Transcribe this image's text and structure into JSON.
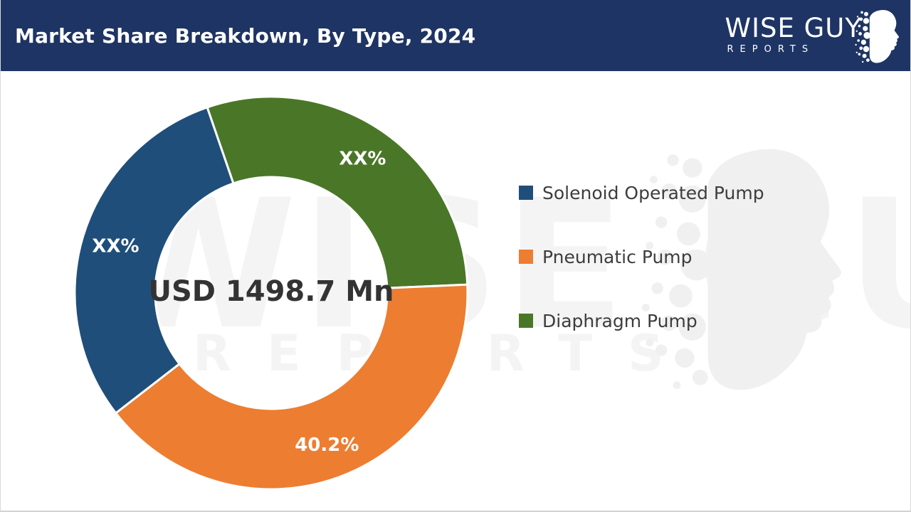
{
  "header": {
    "title": "Market Share Breakdown, By Type, 2024",
    "background_color": "#1e3464",
    "logo": {
      "line1": "WISE GUY",
      "line2": "REPORTS"
    }
  },
  "chart_data": {
    "type": "pie",
    "variant": "donut",
    "title": "Market Share Breakdown, By Type, 2024",
    "center_label": "USD 1498.7 Mn",
    "start_angle_deg": 109,
    "direction": "clockwise",
    "legend_position": "right",
    "segments": [
      {
        "name": "Diaphragm Pump",
        "value_pct": 29.6,
        "data_label": "XX%",
        "color": "#4a7628"
      },
      {
        "name": "Pneumatic Pump",
        "value_pct": 40.2,
        "data_label": "40.2%",
        "color": "#ed7d31"
      },
      {
        "name": "Solenoid Operated Pump",
        "value_pct": 30.2,
        "data_label": "XX%",
        "color": "#1f4e7a"
      }
    ]
  },
  "legend": {
    "items": [
      {
        "label": "Solenoid Operated Pump",
        "color": "#1f4e7a"
      },
      {
        "label": "Pneumatic Pump",
        "color": "#ed7d31"
      },
      {
        "label": "Diaphragm Pump",
        "color": "#4a7628"
      }
    ]
  },
  "watermark": {
    "line1": "WISE GUY",
    "line2": "REPORTS"
  }
}
